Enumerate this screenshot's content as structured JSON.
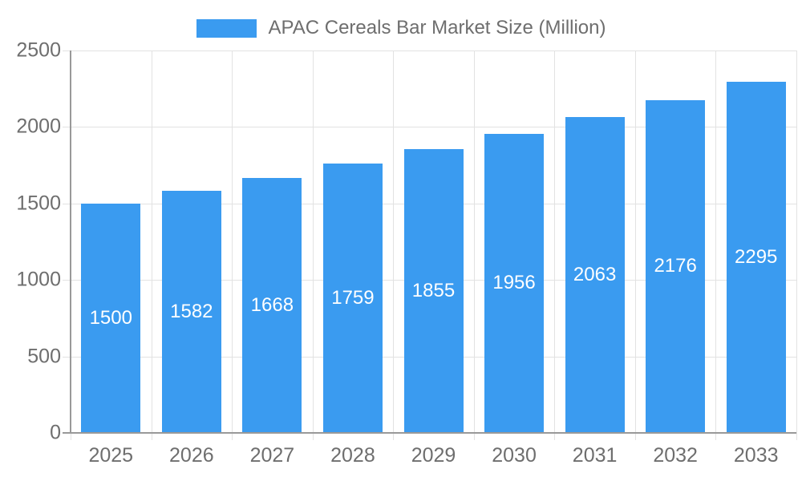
{
  "chart_data": {
    "type": "bar",
    "title": "APAC Cereals Bar Market Size (Million)",
    "categories": [
      "2025",
      "2026",
      "2027",
      "2028",
      "2029",
      "2030",
      "2031",
      "2032",
      "2033"
    ],
    "values": [
      1500,
      1582,
      1668,
      1759,
      1855,
      1956,
      2063,
      2176,
      2295
    ],
    "xlabel": "",
    "ylabel": "",
    "ylim": [
      0,
      2500
    ],
    "yticks": [
      0,
      500,
      1000,
      1500,
      2000,
      2500
    ],
    "grid": "on",
    "legend_position": "top-center",
    "value_label_position": "inside-middle"
  },
  "colors": {
    "bar": "#3A9BF0",
    "bar_label": "#FFFFFF",
    "grid": "#E2E2E2",
    "axis": "#999999",
    "text": "#6E6E6E",
    "background": "#FFFFFF"
  }
}
